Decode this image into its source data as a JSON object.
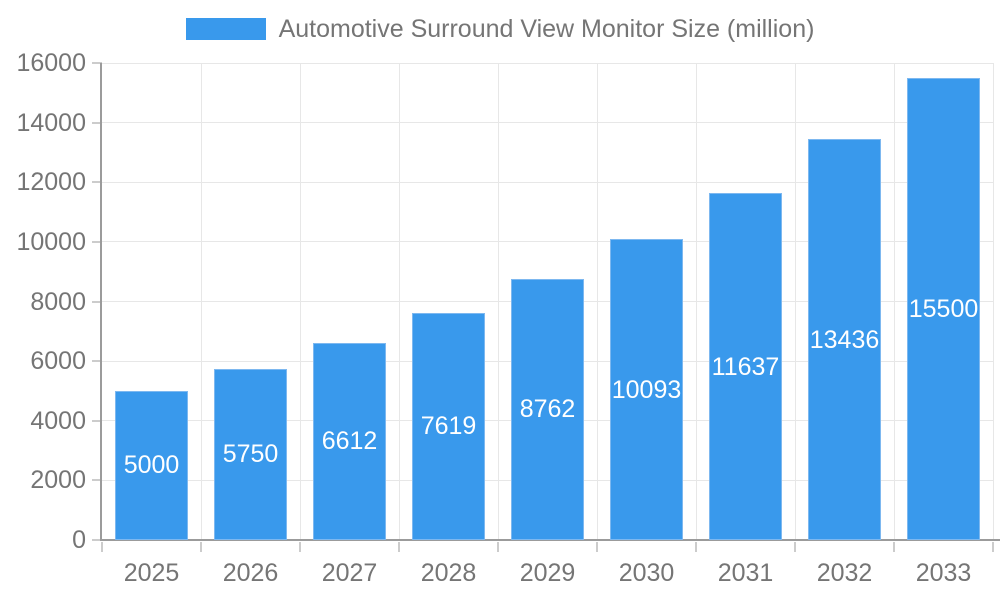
{
  "chart_data": {
    "type": "bar",
    "title": "Automotive Surround View Monitor Size (million)",
    "legend": {
      "position": "top",
      "entries": [
        "Automotive Surround View Monitor Size (million)"
      ]
    },
    "categories": [
      "2025",
      "2026",
      "2027",
      "2028",
      "2029",
      "2030",
      "2031",
      "2032",
      "2033"
    ],
    "series": [
      {
        "name": "Automotive Surround View Monitor Size (million)",
        "values": [
          5000,
          5750,
          6612,
          7619,
          8762,
          10093,
          11637,
          13436,
          15500
        ]
      }
    ],
    "value_labels": [
      "5000",
      "5750",
      "6612",
      "7619",
      "8762",
      "10093",
      "11637",
      "13436",
      "15500"
    ],
    "xlabel": "",
    "ylabel": "",
    "ylim": [
      0,
      16000
    ],
    "y_tick_step": 2000,
    "y_tick_labels": [
      "0",
      "2000",
      "4000",
      "6000",
      "8000",
      "10000",
      "12000",
      "14000",
      "16000"
    ],
    "grid": true,
    "colors": {
      "bar_fill": "#3999EC",
      "bar_border": "#7DB8F0",
      "value_label_text": "#FFFFFF",
      "axis_text": "#757575",
      "legend_text": "#757575",
      "grid_line": "#E7E7E7",
      "axis_line": "#9B9B9B",
      "tick_mark": "#CCCCCC",
      "background": "#FFFFFF"
    }
  }
}
